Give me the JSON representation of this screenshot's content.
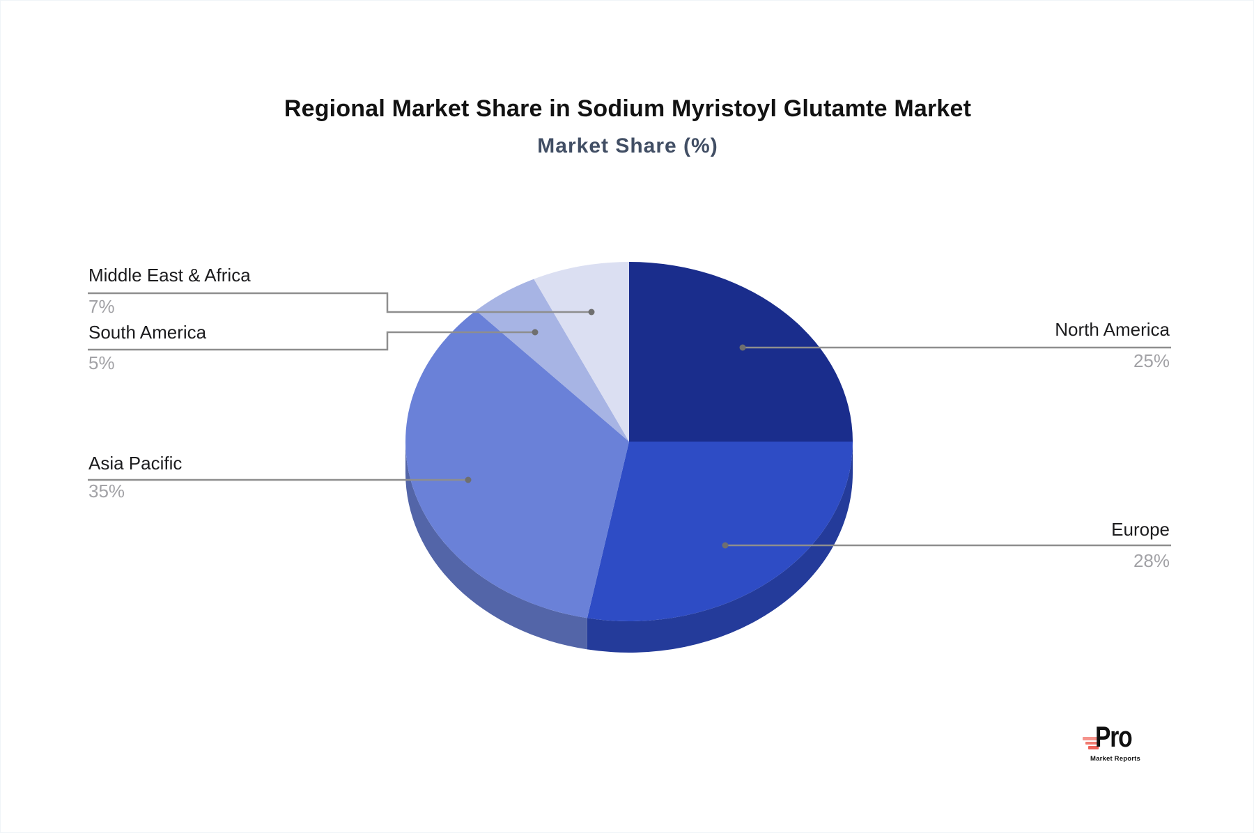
{
  "header": {
    "title": "Regional Market Share in Sodium Myristoyl Glutamte Market",
    "subtitle": "Market Share (%)"
  },
  "chart_data": {
    "type": "pie",
    "title": "Regional Market Share in Sodium Myristoyl Glutamte Market",
    "subtitle": "Market Share (%)",
    "unit": "%",
    "effect": "3d",
    "start_angle_deg": 0,
    "direction": "clockwise",
    "legend_position": "callout-labels",
    "labels": [
      "North America",
      "Europe",
      "Asia Pacific",
      "South America",
      "Middle East & Africa"
    ],
    "values": [
      25,
      28,
      35,
      5,
      7
    ],
    "colors": [
      "#1a2d8c",
      "#2e4cc5",
      "#6a81d8",
      "#a7b4e4",
      "#dbdff2"
    ]
  },
  "slices": [
    {
      "label": "North America",
      "pct": "25%"
    },
    {
      "label": "Europe",
      "pct": "28%"
    },
    {
      "label": "Asia Pacific",
      "pct": "35%"
    },
    {
      "label": "South America",
      "pct": "5%"
    },
    {
      "label": "Middle East & Africa",
      "pct": "7%"
    }
  ],
  "callout": {
    "line_color": "#8e8e8e",
    "dot_color": "#6f6f6f"
  },
  "logo": {
    "name": "Pro",
    "tagline": "Market Reports",
    "text_color": "#101010",
    "bar_colors": [
      "#f5948c",
      "#f17a70",
      "#ee6158"
    ]
  }
}
